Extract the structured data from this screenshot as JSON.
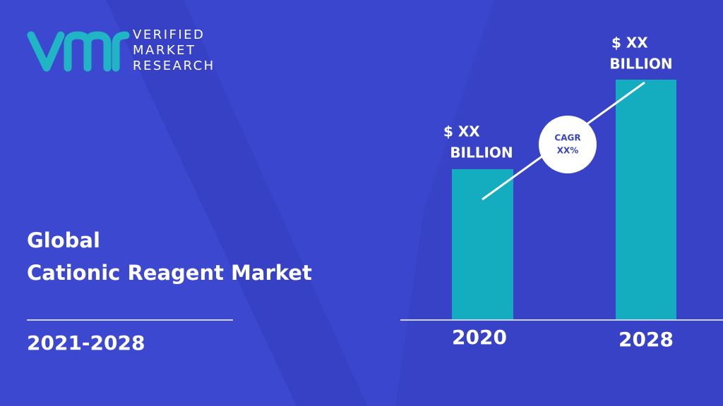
{
  "logo": {
    "lines": [
      "VERIFIED",
      "MARKET",
      "RESEARCH"
    ]
  },
  "title": {
    "lines": [
      "Global",
      "Cationic Reagent Market"
    ]
  },
  "period": "2021-2028",
  "bars": [
    {
      "label": "2020",
      "value_label": [
        "$ XX",
        "BILLION"
      ]
    },
    {
      "label": "2028",
      "value_label": [
        "$ XX",
        "BILLION"
      ]
    }
  ],
  "cagr": [
    "CAGR",
    "XX%"
  ]
}
